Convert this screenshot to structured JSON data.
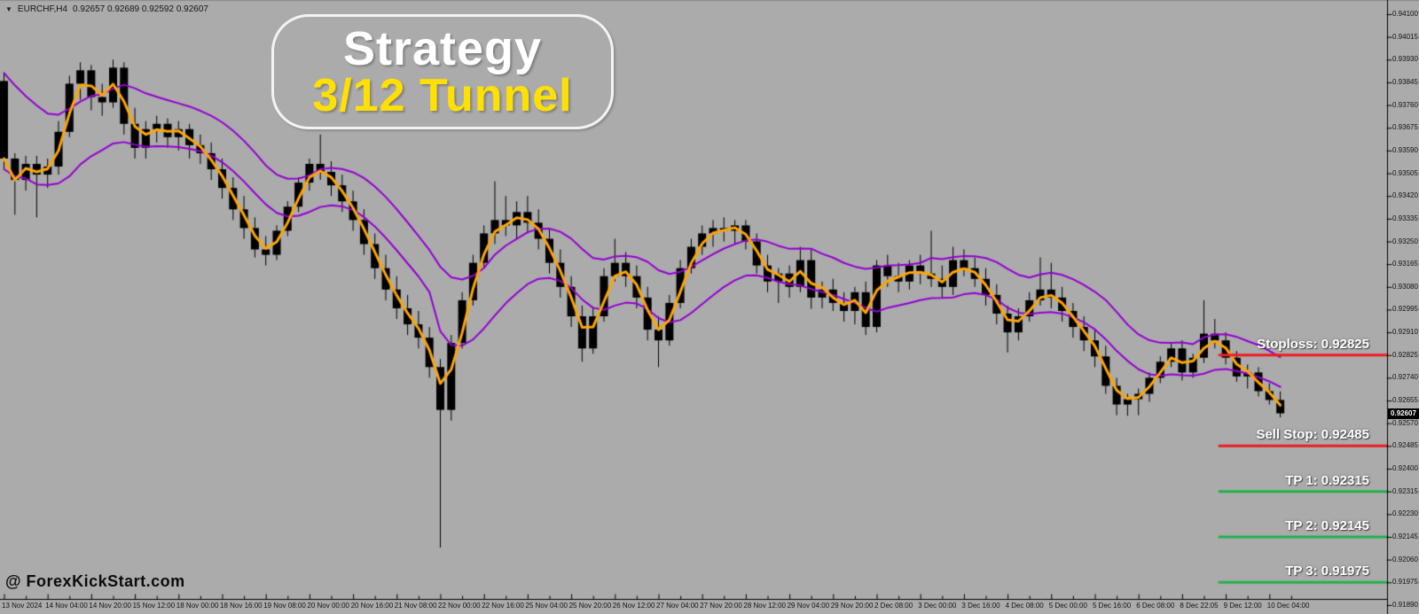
{
  "header": {
    "collapse_icon": "▼",
    "symbol": "EURCHF,H4",
    "quote": "0.92657 0.92689 0.92592 0.92607"
  },
  "title_box": {
    "line1": "Strategy",
    "line2": "3/12 Tunnel",
    "line2_color": "#ffe000"
  },
  "watermark": {
    "text": "@ ForexKickStart.com"
  },
  "colors": {
    "background": "#ababab",
    "candle": "#000000",
    "fast_ma": "#ffa500",
    "tunnel": "#9400d3",
    "stop_line": "#ed1c24",
    "tp_line": "#22b14c",
    "axis": "#000000"
  },
  "chart_data": {
    "type": "candlestick",
    "symbol": "EURCHF",
    "timeframe": "H4",
    "current_price": "0.92607",
    "y_scale": {
      "top": 0.941,
      "step": 0.00085,
      "bottom": 0.9189
    },
    "y_ticks": [
      "0.94100",
      "0.94015",
      "0.93930",
      "0.93845",
      "0.93760",
      "0.93675",
      "0.93590",
      "0.93505",
      "0.93420",
      "0.93335",
      "0.93250",
      "0.93165",
      "0.93080",
      "0.92995",
      "0.92910",
      "0.92825",
      "0.92740",
      "0.92655",
      "0.92570",
      "0.92485",
      "0.92400",
      "0.92315",
      "0.92230",
      "0.92145",
      "0.92060",
      "0.91975",
      "0.91890"
    ],
    "x_labels": [
      "13 Nov 2024",
      "14 Nov 04:00",
      "14 Nov 20:00",
      "15 Nov 12:00",
      "18 Nov 00:00",
      "18 Nov 16:00",
      "19 Nov 08:00",
      "20 Nov 00:00",
      "20 Nov 16:00",
      "21 Nov 08:00",
      "22 Nov 00:00",
      "22 Nov 16:00",
      "25 Nov 04:00",
      "25 Nov 20:00",
      "26 Nov 12:00",
      "27 Nov 04:00",
      "27 Nov 20:00",
      "28 Nov 12:00",
      "29 Nov 04:00",
      "29 Nov 20:00",
      "2 Dec 08:00",
      "3 Dec 00:00",
      "3 Dec 16:00",
      "4 Dec 08:00",
      "5 Dec 00:00",
      "5 Dec 16:00",
      "6 Dec 08:00",
      "8 Dec 22:05",
      "9 Dec 12:00",
      "10 Dec 04:00"
    ],
    "indicators": {
      "fast_ma": {
        "period": 3,
        "applied": "close",
        "color": "#ffa500"
      },
      "tunnel_upper": {
        "period": 12,
        "applied": "high",
        "color": "#9400d3"
      },
      "tunnel_lower": {
        "period": 12,
        "applied": "low",
        "color": "#9400d3"
      }
    },
    "annotations": [
      {
        "id": "stoploss",
        "label": "Stoploss: 0.92825",
        "price": 0.92825,
        "color": "#ed1c24"
      },
      {
        "id": "sell-stop",
        "label": "Sell Stop: 0.92485",
        "price": 0.92485,
        "color": "#ed1c24"
      },
      {
        "id": "tp-1",
        "label": "TP 1: 0.92315",
        "price": 0.92315,
        "color": "#22b14c"
      },
      {
        "id": "tp-2",
        "label": "TP 2: 0.92145",
        "price": 0.92145,
        "color": "#22b14c"
      },
      {
        "id": "tp-3",
        "label": "TP 3: 0.91975",
        "price": 0.91975,
        "color": "#22b14c"
      }
    ],
    "candles": [
      [
        0.9385,
        0.9388,
        0.9352,
        0.9356
      ],
      [
        0.9356,
        0.9358,
        0.9335,
        0.9348
      ],
      [
        0.9348,
        0.9357,
        0.9344,
        0.9354
      ],
      [
        0.9354,
        0.9357,
        0.9334,
        0.935
      ],
      [
        0.935,
        0.9356,
        0.9345,
        0.9353
      ],
      [
        0.9353,
        0.937,
        0.935,
        0.9366
      ],
      [
        0.9366,
        0.9387,
        0.9364,
        0.9384
      ],
      [
        0.9384,
        0.9392,
        0.9378,
        0.9389
      ],
      [
        0.9389,
        0.9391,
        0.9374,
        0.9379
      ],
      [
        0.9379,
        0.9384,
        0.9372,
        0.9377
      ],
      [
        0.9377,
        0.9393,
        0.9375,
        0.939
      ],
      [
        0.939,
        0.9392,
        0.9365,
        0.9369
      ],
      [
        0.9369,
        0.9375,
        0.9356,
        0.936
      ],
      [
        0.936,
        0.937,
        0.9356,
        0.9367
      ],
      [
        0.9367,
        0.9372,
        0.9362,
        0.9369
      ],
      [
        0.9369,
        0.9371,
        0.936,
        0.9364
      ],
      [
        0.9364,
        0.937,
        0.9359,
        0.9367
      ],
      [
        0.9367,
        0.9369,
        0.9356,
        0.9361
      ],
      [
        0.9361,
        0.9365,
        0.9354,
        0.9358
      ],
      [
        0.9358,
        0.9362,
        0.9348,
        0.9352
      ],
      [
        0.9352,
        0.9356,
        0.9341,
        0.9345
      ],
      [
        0.9345,
        0.9349,
        0.9333,
        0.9337
      ],
      [
        0.9337,
        0.9342,
        0.9326,
        0.933
      ],
      [
        0.933,
        0.9334,
        0.9319,
        0.9322
      ],
      [
        0.9322,
        0.9327,
        0.9316,
        0.932
      ],
      [
        0.932,
        0.9331,
        0.9318,
        0.9329
      ],
      [
        0.9329,
        0.934,
        0.9327,
        0.9338
      ],
      [
        0.9338,
        0.9349,
        0.9336,
        0.9347
      ],
      [
        0.9347,
        0.9356,
        0.9344,
        0.9354
      ],
      [
        0.9354,
        0.9365,
        0.9348,
        0.9351
      ],
      [
        0.9351,
        0.9355,
        0.9342,
        0.9346
      ],
      [
        0.9346,
        0.935,
        0.9336,
        0.934
      ],
      [
        0.934,
        0.9344,
        0.9329,
        0.9333
      ],
      [
        0.9333,
        0.9337,
        0.932,
        0.9324
      ],
      [
        0.9324,
        0.9328,
        0.9311,
        0.9315
      ],
      [
        0.9315,
        0.932,
        0.9303,
        0.9307
      ],
      [
        0.9307,
        0.9312,
        0.9296,
        0.93
      ],
      [
        0.93,
        0.9305,
        0.929,
        0.9294
      ],
      [
        0.9294,
        0.9299,
        0.9285,
        0.9289
      ],
      [
        0.9289,
        0.9293,
        0.9274,
        0.9278
      ],
      [
        0.9278,
        0.9281,
        0.92105,
        0.9262
      ],
      [
        0.9262,
        0.929,
        0.9258,
        0.9287
      ],
      [
        0.9287,
        0.9306,
        0.9285,
        0.9303
      ],
      [
        0.9303,
        0.932,
        0.9301,
        0.9317
      ],
      [
        0.9317,
        0.9331,
        0.9315,
        0.9328
      ],
      [
        0.9328,
        0.93475,
        0.9324,
        0.9333
      ],
      [
        0.9333,
        0.9342,
        0.9327,
        0.9331
      ],
      [
        0.9331,
        0.934,
        0.9326,
        0.9336
      ],
      [
        0.9336,
        0.9342,
        0.9328,
        0.9332
      ],
      [
        0.9332,
        0.9337,
        0.9322,
        0.9326
      ],
      [
        0.9326,
        0.933,
        0.9313,
        0.9317
      ],
      [
        0.9317,
        0.9322,
        0.9304,
        0.9308
      ],
      [
        0.9308,
        0.9312,
        0.9293,
        0.9297
      ],
      [
        0.9297,
        0.9301,
        0.928,
        0.9285
      ],
      [
        0.9285,
        0.93,
        0.9283,
        0.9297
      ],
      [
        0.9297,
        0.9315,
        0.9295,
        0.9312
      ],
      [
        0.9312,
        0.9326,
        0.931,
        0.9317
      ],
      [
        0.9317,
        0.9321,
        0.9308,
        0.9312
      ],
      [
        0.9312,
        0.9316,
        0.93,
        0.9304
      ],
      [
        0.9304,
        0.9308,
        0.9288,
        0.9292
      ],
      [
        0.9292,
        0.9297,
        0.9278,
        0.9288
      ],
      [
        0.9288,
        0.9305,
        0.9286,
        0.9302
      ],
      [
        0.9302,
        0.9318,
        0.93,
        0.9315
      ],
      [
        0.9315,
        0.9326,
        0.9313,
        0.9323
      ],
      [
        0.9323,
        0.9331,
        0.932,
        0.9328
      ],
      [
        0.9328,
        0.9333,
        0.9323,
        0.933
      ],
      [
        0.933,
        0.9334,
        0.9325,
        0.9329
      ],
      [
        0.9329,
        0.9333,
        0.9324,
        0.9331
      ],
      [
        0.9331,
        0.9333,
        0.9322,
        0.9325
      ],
      [
        0.9325,
        0.9328,
        0.9313,
        0.9316
      ],
      [
        0.9316,
        0.932,
        0.9306,
        0.931
      ],
      [
        0.931,
        0.9315,
        0.9302,
        0.9313
      ],
      [
        0.9313,
        0.9316,
        0.9304,
        0.9308
      ],
      [
        0.9308,
        0.9323,
        0.9306,
        0.9318
      ],
      [
        0.9318,
        0.9322,
        0.92998,
        0.9304
      ],
      [
        0.9304,
        0.931,
        0.93,
        0.9307
      ],
      [
        0.9307,
        0.9311,
        0.9299,
        0.9302
      ],
      [
        0.9302,
        0.9306,
        0.9295,
        0.9299
      ],
      [
        0.9299,
        0.9308,
        0.9294,
        0.9306
      ],
      [
        0.9306,
        0.931,
        0.929,
        0.9293
      ],
      [
        0.9293,
        0.9318,
        0.9291,
        0.9316
      ],
      [
        0.9316,
        0.932,
        0.9308,
        0.9312
      ],
      [
        0.9312,
        0.9317,
        0.9306,
        0.931
      ],
      [
        0.931,
        0.9318,
        0.9307,
        0.9316
      ],
      [
        0.9316,
        0.932,
        0.9309,
        0.9313
      ],
      [
        0.9313,
        0.9329,
        0.9308,
        0.9311
      ],
      [
        0.9311,
        0.9316,
        0.9304,
        0.9308
      ],
      [
        0.9308,
        0.9323,
        0.9305,
        0.9318
      ],
      [
        0.9318,
        0.9322,
        0.9312,
        0.9315
      ],
      [
        0.9315,
        0.9319,
        0.9308,
        0.9311
      ],
      [
        0.9311,
        0.9315,
        0.9301,
        0.9305
      ],
      [
        0.9305,
        0.9309,
        0.9294,
        0.9298
      ],
      [
        0.9298,
        0.9301,
        0.92835,
        0.9291
      ],
      [
        0.9291,
        0.93,
        0.9288,
        0.9297
      ],
      [
        0.9297,
        0.9306,
        0.9295,
        0.9303
      ],
      [
        0.9303,
        0.9319,
        0.9301,
        0.9307
      ],
      [
        0.9307,
        0.9317,
        0.93,
        0.9304
      ],
      [
        0.9304,
        0.9308,
        0.9295,
        0.9299
      ],
      [
        0.9299,
        0.9302,
        0.9289,
        0.9293
      ],
      [
        0.9293,
        0.9297,
        0.9284,
        0.9288
      ],
      [
        0.9288,
        0.9292,
        0.9278,
        0.9282
      ],
      [
        0.9282,
        0.9286,
        0.9268,
        0.9271
      ],
      [
        0.9271,
        0.9274,
        0.926,
        0.9264
      ],
      [
        0.9264,
        0.9268,
        0.92598,
        0.9266
      ],
      [
        0.9266,
        0.927,
        0.926,
        0.9268
      ],
      [
        0.9268,
        0.9276,
        0.9265,
        0.9274
      ],
      [
        0.9274,
        0.9282,
        0.9272,
        0.928
      ],
      [
        0.928,
        0.9287,
        0.9278,
        0.9285
      ],
      [
        0.9285,
        0.9288,
        0.9273,
        0.9276
      ],
      [
        0.9276,
        0.9283,
        0.9274,
        0.92815
      ],
      [
        0.92815,
        0.9303,
        0.92795,
        0.92905
      ],
      [
        0.92905,
        0.9296,
        0.9285,
        0.9288
      ],
      [
        0.9288,
        0.9291,
        0.9279,
        0.92815
      ],
      [
        0.92815,
        0.9284,
        0.92725,
        0.92745
      ],
      [
        0.92745,
        0.9279,
        0.927,
        0.9276
      ],
      [
        0.9276,
        0.9278,
        0.9267,
        0.9269
      ],
      [
        0.9269,
        0.9272,
        0.9264,
        0.92657
      ],
      [
        0.92657,
        0.92689,
        0.92592,
        0.92607
      ]
    ]
  }
}
